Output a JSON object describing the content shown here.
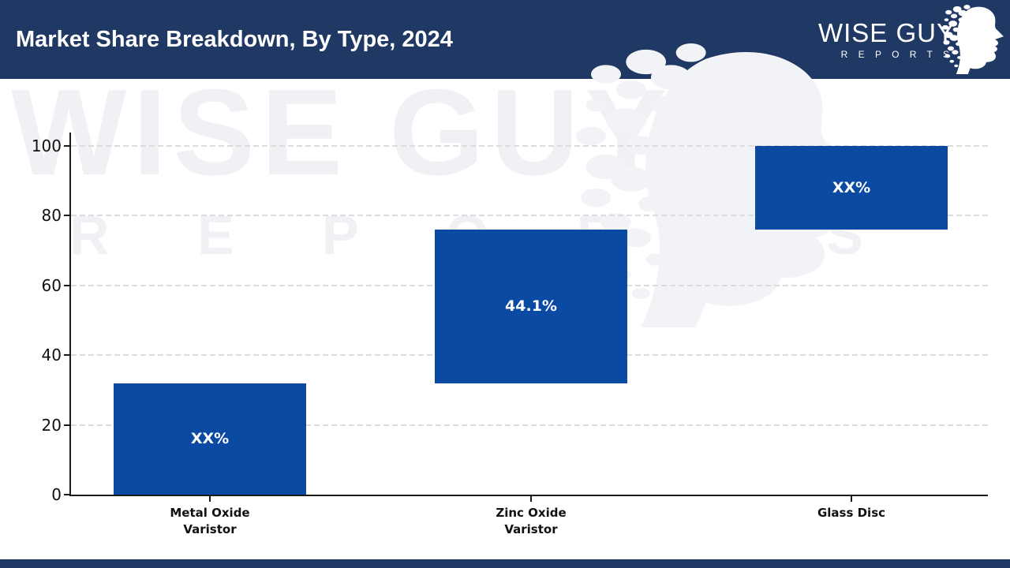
{
  "header": {
    "title": "Market Share Breakdown, By Type, 2024",
    "logo_line1": "WISE GUY",
    "logo_line2": "R E P O R T S"
  },
  "watermark": {
    "line1": "WISE GUY",
    "line2": "R E P O R T S"
  },
  "colors": {
    "navy": "#1f3864",
    "bar_blue": "#0b4aa2",
    "grid": "#dcdcdc",
    "axis": "#1a1a1a",
    "bar_label": "#ffffff",
    "watermark": "#f0f1f4"
  },
  "chart_data": {
    "type": "bar",
    "subtype": "cumulative-floating-breakdown",
    "title": "Market Share Breakdown, By Type, 2024",
    "categories": [
      [
        "Metal Oxide",
        "Varistor"
      ],
      [
        "Zinc Oxide",
        "Varistor"
      ],
      [
        "Glass Disc"
      ]
    ],
    "bars": [
      {
        "category": "Metal Oxide Varistor",
        "start": 0,
        "end": 32,
        "label": "XX%"
      },
      {
        "category": "Zinc Oxide Varistor",
        "start": 32,
        "end": 76.1,
        "label": "44.1%"
      },
      {
        "category": "Glass Disc",
        "start": 76.1,
        "end": 100,
        "label": "XX%"
      }
    ],
    "xlabel": "",
    "ylabel": "",
    "ylim": [
      0,
      100
    ],
    "yticks": [
      0,
      20,
      40,
      60,
      80,
      100
    ],
    "grid": "dashed-horizontal",
    "legend": "none"
  }
}
